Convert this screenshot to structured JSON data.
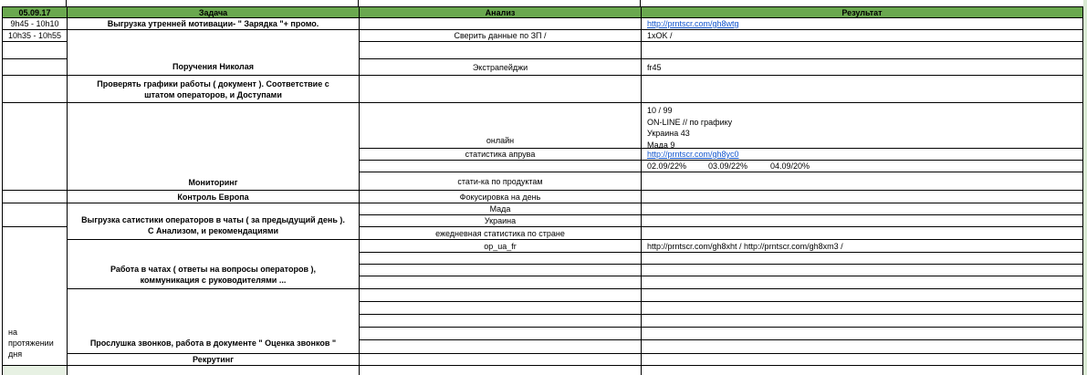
{
  "colors": {
    "header_bg": "#6aa84f",
    "edge_strip": "#d9ead3",
    "link": "#1155cc",
    "border": "#000000"
  },
  "header": {
    "date": "05.09.17",
    "task": "Задача",
    "analysis": "Анализ",
    "result": "Результат"
  },
  "time": {
    "slot1": "9h45 - 10h10",
    "slot2": "10h35 - 10h55",
    "all_day": [
      "на",
      "протяжении",
      "дня"
    ]
  },
  "tasks": {
    "morning_motivation": "Выгрузка утренней мотивации- \" Зарядка \"+ промо.",
    "nikolay_orders": "Поручения Николая",
    "check_schedules": [
      "Проверять графики  работы ( документ ). Соответствие с",
      "штатом операторов, и Доступами"
    ],
    "monitoring": "Мониторинг",
    "control_europe": "Контроль Европа",
    "operators_stats": [
      "Выгрузка сатистики операторов в чаты ( за предыдущий день ).",
      "С Анализом, и рекомендациями"
    ],
    "chats_work": [
      "Работа в чатах ( ответы на вопросы операторов ),",
      "коммуникация с руководителями ..."
    ],
    "calls_listening": "Прослушка звонков, работа в документе \" Оценка звонков \"",
    "recruiting": "Рекрутинг"
  },
  "analysis": {
    "check_zp": "Сверить данные по ЗП /",
    "extrapages": "Экстрапейджи",
    "online": "онлайн",
    "approve_stats": "статистика апрува",
    "product_stats": "стати-ка по продуктам",
    "day_focus": "Фокусировка на день",
    "mada": "Мада",
    "ukraine": "Украина",
    "daily_country_stats": "ежедневная статистика по стране",
    "op_ua_fr": "op_ua_fr"
  },
  "results": {
    "morning_link": "http://prntscr.com/gh8wtg",
    "zp_result": "1xOK /",
    "extrapages_result": "fr45",
    "online_lines": [
      "10 / 99",
      "ON-LINE // по графику",
      "Украина 43",
      "Мада 9"
    ],
    "approve_link": "http://prntscr.com/gh8yc0",
    "percentages": [
      "02.09/22%",
      "03.09/22%",
      "04.09/20%"
    ],
    "chats_links": "http://prntscr.com/gh8xht / http://prntscr.com/gh8xm3 /"
  }
}
